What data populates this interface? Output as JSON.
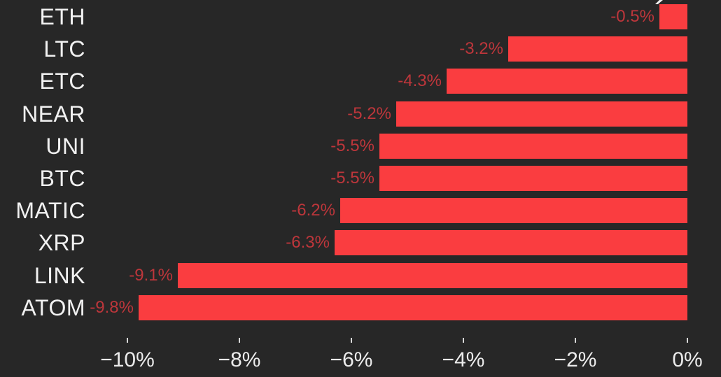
{
  "chart_data": {
    "type": "bar",
    "orientation": "horizontal",
    "title": "",
    "xlabel": "",
    "ylabel": "",
    "categories": [
      "ETH",
      "LTC",
      "ETC",
      "NEAR",
      "UNI",
      "BTC",
      "MATIC",
      "XRP",
      "LINK",
      "ATOM"
    ],
    "values": [
      -0.5,
      -3.2,
      -4.3,
      -5.2,
      -5.5,
      -5.5,
      -6.2,
      -6.3,
      -9.1,
      -9.8
    ],
    "value_labels": [
      "-0.5%",
      "-3.2%",
      "-4.3%",
      "-5.2%",
      "-5.5%",
      "-5.5%",
      "-6.2%",
      "-6.3%",
      "-9.1%",
      "-9.8%"
    ],
    "x_ticks": [
      {
        "value": -10,
        "label": "−10%"
      },
      {
        "value": -8,
        "label": "−8%"
      },
      {
        "value": -6,
        "label": "−6%"
      },
      {
        "value": -4,
        "label": "−4%"
      },
      {
        "value": -2,
        "label": "−2%"
      },
      {
        "value": 0,
        "label": "0%"
      }
    ],
    "xlim": [
      -10.65,
      0.6
    ],
    "grid": false,
    "legend": null,
    "colors": {
      "background": "#272727",
      "bar": "#fa3d40",
      "value_label": "#bd363b",
      "category_label": "#f1f1f1",
      "tick_label": "#ebebeb",
      "tick_mark": "#d8d8d8"
    }
  }
}
